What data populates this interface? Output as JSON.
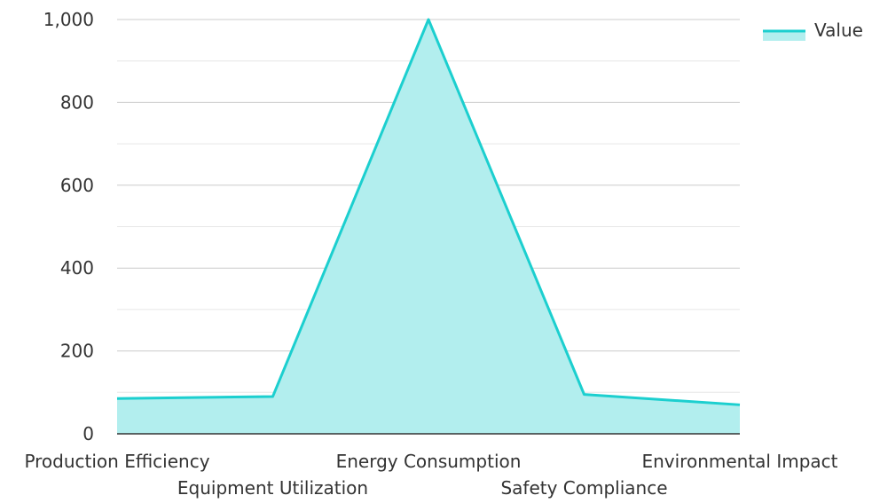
{
  "chart_data": {
    "type": "area",
    "categories": [
      "Production Efficiency",
      "Equipment Utilization",
      "Energy Consumption",
      "Safety Compliance",
      "Environmental Impact"
    ],
    "series": [
      {
        "name": "Value",
        "values": [
          85,
          90,
          1000,
          95,
          70
        ]
      }
    ],
    "title": "",
    "xlabel": "",
    "ylabel": "",
    "ylim": [
      0,
      1000
    ],
    "yticks": [
      0,
      200,
      400,
      600,
      800,
      1000
    ],
    "ytick_labels": [
      "0",
      "200",
      "400",
      "600",
      "800",
      "1,000"
    ],
    "grid": true,
    "legend_position": "top-right",
    "colors": {
      "line": "#1ccfcf",
      "fill": "#b2eeee",
      "grid": "#cccccc",
      "grid_minor": "#e6e6e6",
      "axis": "#333333"
    }
  }
}
